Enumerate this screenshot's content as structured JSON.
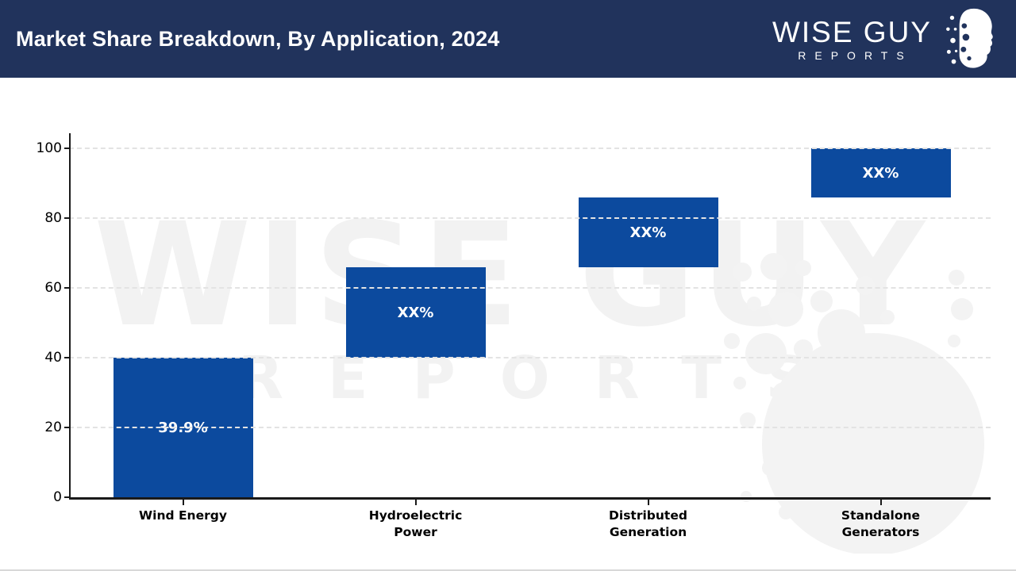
{
  "header": {
    "title": "Market Share Breakdown, By Application, 2024",
    "logo": {
      "name_top": "WISE GUY",
      "name_bottom": "REPORTS"
    }
  },
  "watermark": {
    "line1": "WISE GUY",
    "line2": "REPORTS"
  },
  "chart_data": {
    "type": "bar",
    "subtype": "waterfall",
    "title": "Market Share Breakdown, By Application, 2024",
    "unit": "%",
    "categories": [
      "Wind Energy",
      "Hydroelectric Power",
      "Distributed Generation",
      "Standalone Generators"
    ],
    "segments": [
      {
        "category_lines": [
          "Wind Energy"
        ],
        "start": 0,
        "end": 39.9,
        "value_label": "39.9%"
      },
      {
        "category_lines": [
          "Hydroelectric",
          "Power"
        ],
        "start": 39.9,
        "end": 65.9,
        "value_label": "XX%"
      },
      {
        "category_lines": [
          "Distributed",
          "Generation"
        ],
        "start": 65.9,
        "end": 85.9,
        "value_label": "XX%"
      },
      {
        "category_lines": [
          "Standalone",
          "Generators"
        ],
        "start": 85.9,
        "end": 100,
        "value_label": "XX%"
      }
    ],
    "yticks": [
      0,
      20,
      40,
      60,
      80,
      100
    ],
    "ylim": [
      0,
      104
    ],
    "grid": "horizontal-dashed",
    "legend": "none",
    "bar_color": "#0c4a9e",
    "bar_label_color": "#ffffff",
    "axis_color": "#1a1a1a",
    "gridline_color": "#e3e3e3",
    "header_bg": "#21335c"
  }
}
